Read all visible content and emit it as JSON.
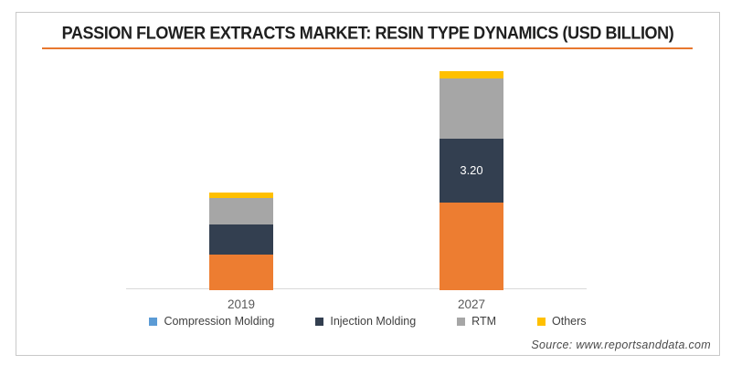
{
  "header": {
    "title": "PASSION FLOWER EXTRACTS MARKET: RESIN TYPE DYNAMICS (USD BILLION)"
  },
  "source": {
    "label": "Source: www.reportsanddata.com"
  },
  "colors": {
    "title_text": "#1f1f1f",
    "title_rule": "#e8782f",
    "frame_border": "#c9c9c9",
    "axis_line": "#d9d9d9",
    "tick_text": "#595959",
    "legend_text": "#3f3f3f",
    "source_text": "#4a4a4a",
    "data_label_text": "#ffffff"
  },
  "chart_data": {
    "type": "bar",
    "stacked": true,
    "title": "PASSION FLOWER EXTRACTS MARKET: RESIN TYPE DYNAMICS (USD BILLION)",
    "value_unit": "USD Billion",
    "xlabel": "",
    "ylabel": "",
    "ylim": [
      0,
      11.5
    ],
    "grid": false,
    "legend_position": "bottom",
    "categories": [
      "2019",
      "2027"
    ],
    "series": [
      {
        "name": "Compression Molding",
        "values": [
          1.8,
          4.4
        ],
        "bar_color": "#ed7d31",
        "legend_color": "#5b9bd5"
      },
      {
        "name": "Injection Molding",
        "values": [
          1.5,
          3.2
        ],
        "bar_color": "#333f50",
        "legend_color": "#333f50"
      },
      {
        "name": "RTM",
        "values": [
          1.3,
          3.0
        ],
        "bar_color": "#a6a6a6",
        "legend_color": "#a6a6a6"
      },
      {
        "name": "Others",
        "values": [
          0.3,
          0.35
        ],
        "bar_color": "#ffc000",
        "legend_color": "#ffc000"
      }
    ],
    "data_labels": [
      {
        "category": "2027",
        "series": "Injection Molding",
        "text": "3.20"
      }
    ]
  }
}
